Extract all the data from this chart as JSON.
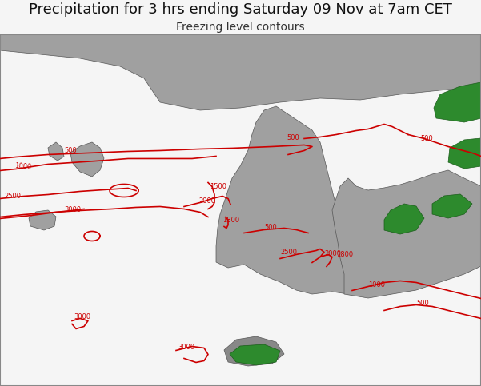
{
  "title": "Precipitation for 3 hrs ending Saturday 09 Nov at 7am CET",
  "subtitle": "Freezing level contours",
  "title_fontsize": 13,
  "subtitle_fontsize": 10,
  "fig_width": 6.01,
  "fig_height": 4.83,
  "dpi": 100,
  "title_bg_color": "#f0f0f0",
  "map_ocean_color": "#c8d8e8",
  "map_land_color": "#b0b0b0",
  "contour_color": "#cc0000",
  "border_color": "#000000",
  "green_color": "#228B22"
}
